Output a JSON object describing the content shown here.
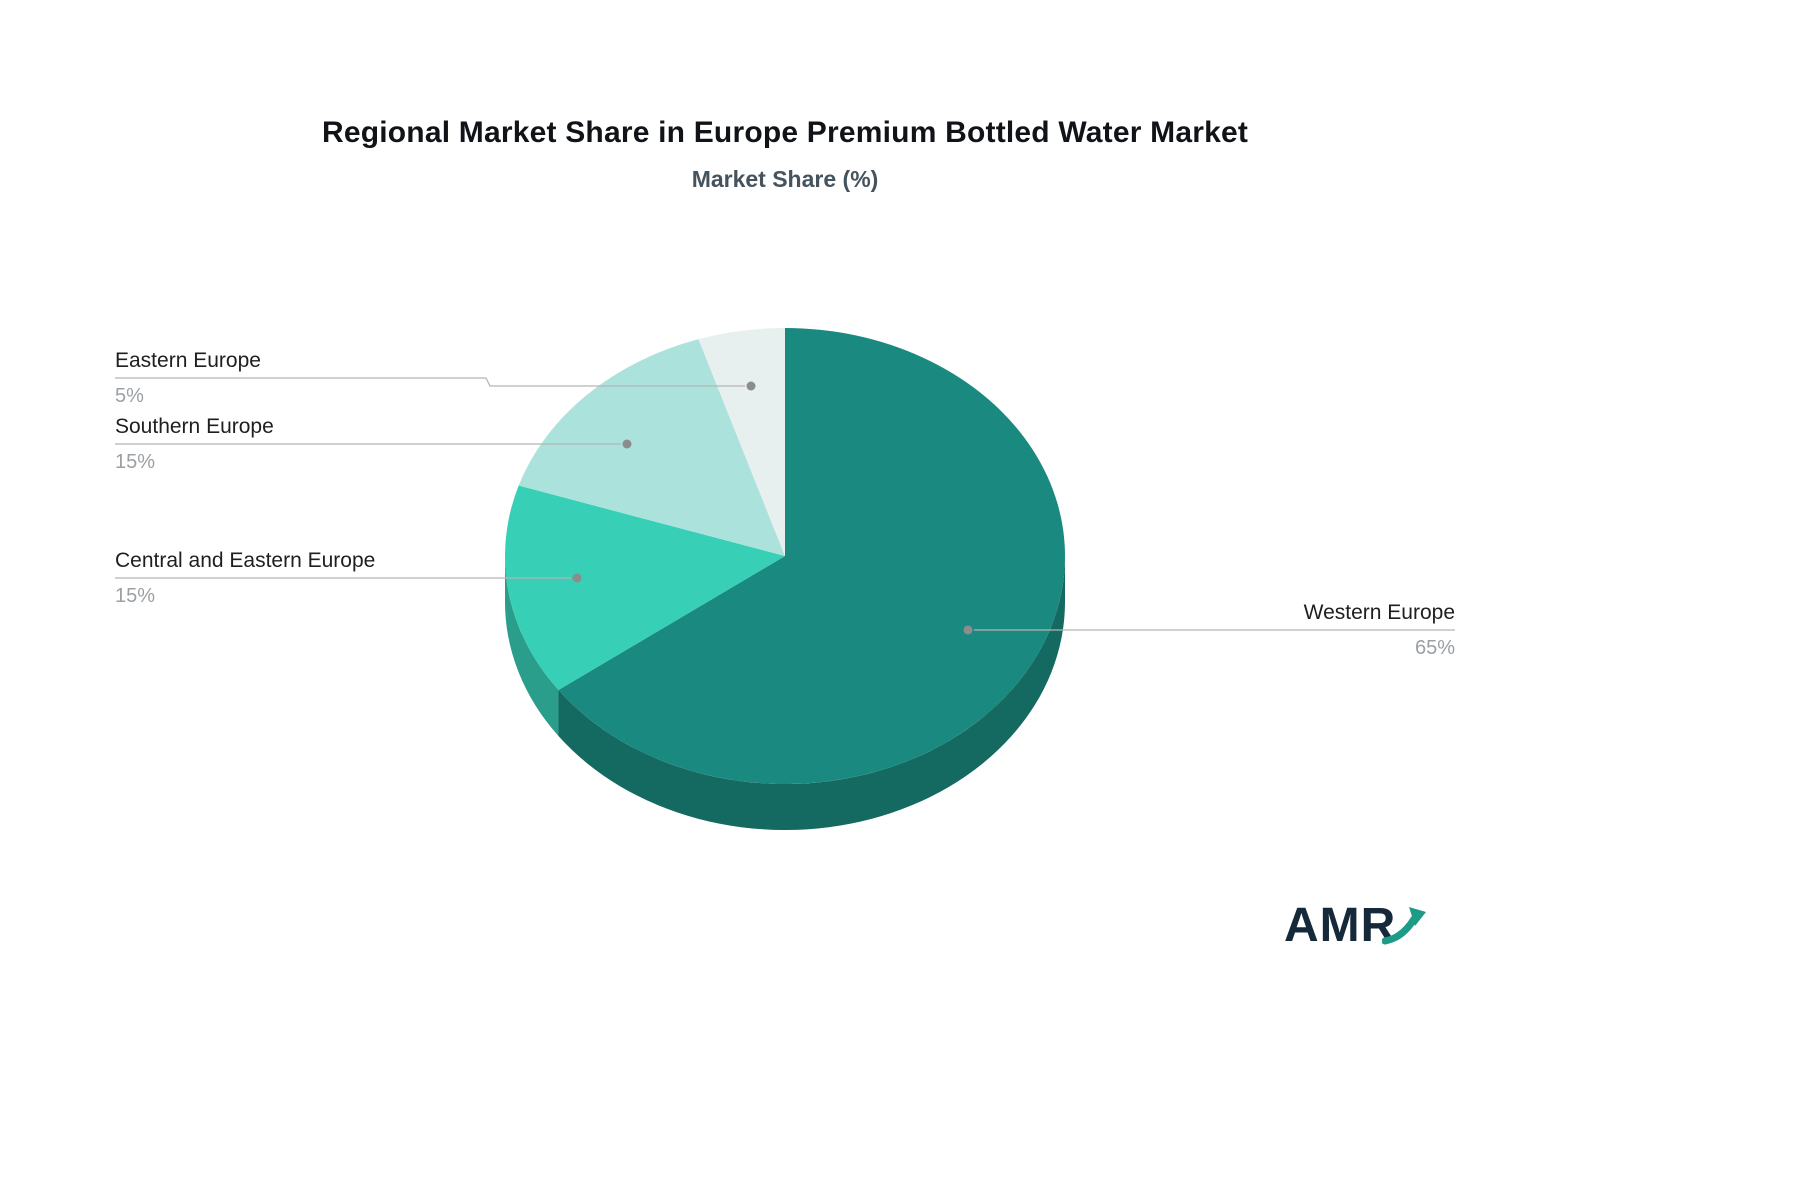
{
  "page": {
    "background": "#ffffff"
  },
  "chart_data": {
    "type": "pie",
    "title": "Regional Market Share in Europe Premium Bottled Water Market",
    "subtitle": "Market Share (%)",
    "unit": "%",
    "labels": [
      "Western Europe",
      "Central and Eastern Europe",
      "Southern Europe",
      "Eastern Europe"
    ],
    "values": [
      65,
      15,
      15,
      5
    ],
    "value_labels": [
      "65%",
      "15%",
      "15%",
      "5%"
    ],
    "colors": [
      "#1a8a80",
      "#38cfb7",
      "#abe3dc",
      "#e7f0ee"
    ],
    "effect": "3d",
    "start_angle_deg": 0,
    "direction": "clockwise",
    "legend_position": "none",
    "callout_line_color": "#b5b5b5",
    "callout_dot_color": "#8c8c8c",
    "label_color": "#1f1f1f",
    "value_color": "#9aa0a4",
    "title_color": "#101418",
    "subtitle_color": "#44535d"
  },
  "branding": {
    "logo_text": "AMR",
    "logo_color": "#15293a",
    "arrow_color": "#1d9b87"
  }
}
